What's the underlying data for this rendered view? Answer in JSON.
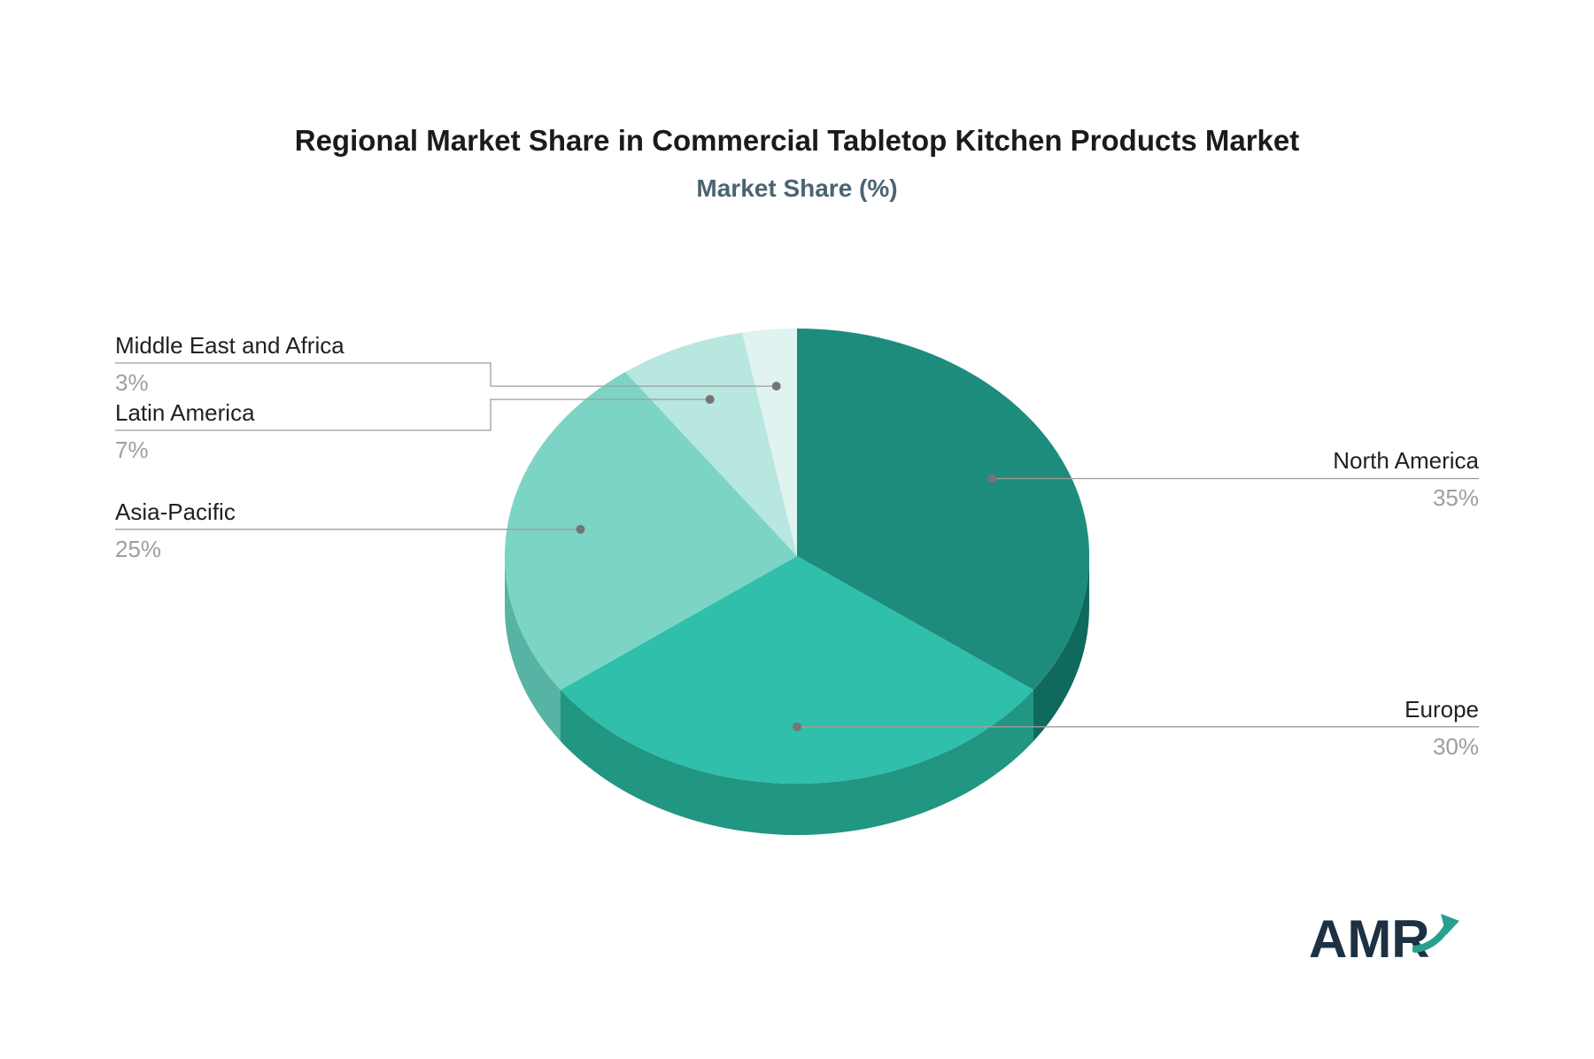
{
  "header": {
    "title": "Regional Market Share in Commercial Tabletop Kitchen Products Market",
    "subtitle": "Market Share (%)"
  },
  "logo": {
    "text": "AMR",
    "color": "#1d3143",
    "arrow_color": "#27a08e"
  },
  "chart_data": {
    "type": "pie",
    "style": "3d",
    "title": "Regional Market Share in Commercial Tabletop Kitchen Products Market",
    "subtitle": "Market Share (%)",
    "unit": "%",
    "direction": "clockwise",
    "start_angle_deg": 0,
    "legend_position": "none",
    "labels": [
      "North America",
      "Europe",
      "Asia-Pacific",
      "Latin America",
      "Middle East and Africa"
    ],
    "values": [
      35,
      30,
      25,
      7,
      3
    ],
    "value_labels": [
      "35%",
      "30%",
      "25%",
      "7%",
      "3%"
    ],
    "colors": [
      "#1e8c7d",
      "#2fbfab",
      "#7cd4c5",
      "#b7e7df",
      "#e1f3f0"
    ],
    "side_colors": [
      "#10695d",
      "#219682",
      "#57b3a3",
      "#8fccc2",
      "#bcded8"
    ],
    "connector_color": "#9e9e9e",
    "label_color": "#212121",
    "value_color": "#9e9e9e"
  }
}
